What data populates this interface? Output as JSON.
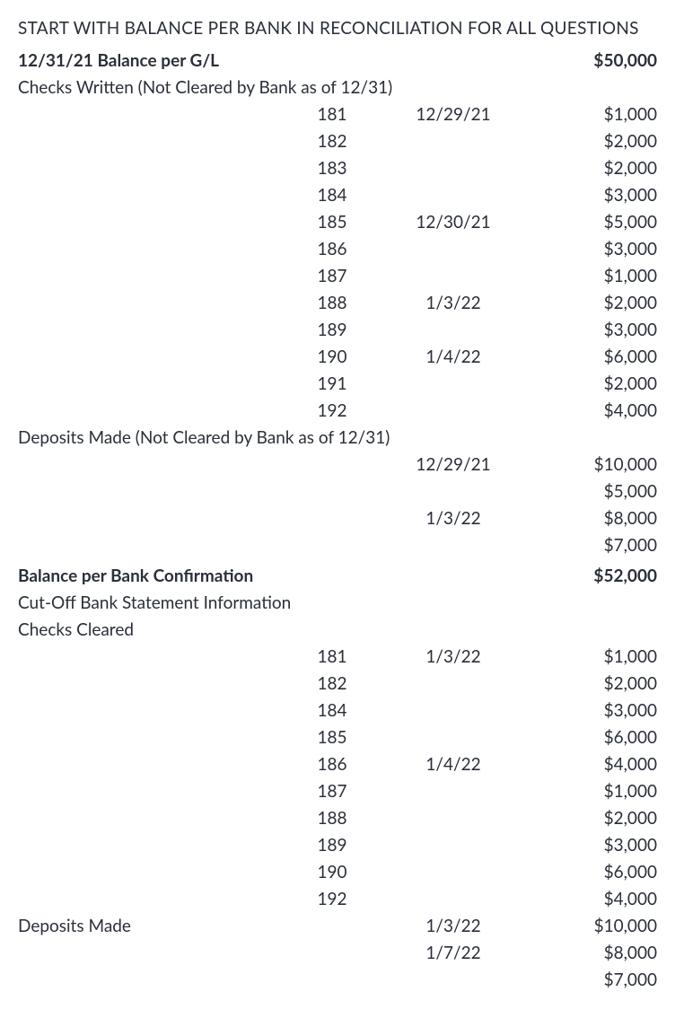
{
  "title": "START WITH BALANCE PER BANK IN RECONCILIATION FOR ALL QUESTIONS",
  "balance_gl": {
    "label": "12/31/21 Balance per G/L",
    "amount": "$50,000"
  },
  "checks_written_header": "Checks Written (Not Cleared by Bank as of 12/31)",
  "checks_written": [
    {
      "num": "181",
      "date": "12/29/21",
      "amount": "$1,000"
    },
    {
      "num": "182",
      "date": "",
      "amount": "$2,000"
    },
    {
      "num": "183",
      "date": "",
      "amount": "$2,000"
    },
    {
      "num": "184",
      "date": "",
      "amount": "$3,000"
    },
    {
      "num": "185",
      "date": "12/30/21",
      "amount": "$5,000"
    },
    {
      "num": "186",
      "date": "",
      "amount": "$3,000"
    },
    {
      "num": "187",
      "date": "",
      "amount": "$1,000"
    },
    {
      "num": "188",
      "date": "1/3/22",
      "amount": "$2,000"
    },
    {
      "num": "189",
      "date": "",
      "amount": "$3,000"
    },
    {
      "num": "190",
      "date": "1/4/22",
      "amount": "$6,000"
    },
    {
      "num": "191",
      "date": "",
      "amount": "$2,000"
    },
    {
      "num": "192",
      "date": "",
      "amount": "$4,000"
    }
  ],
  "deposits_made_header": "Deposits Made  (Not Cleared by Bank as of 12/31)",
  "deposits_made": [
    {
      "date": "12/29/21",
      "amount": "$10,000"
    },
    {
      "date": "",
      "amount": "$5,000"
    },
    {
      "date": "1/3/22",
      "amount": "$8,000"
    },
    {
      "date": "",
      "amount": "$7,000"
    }
  ],
  "balance_bank": {
    "label": "Balance per Bank Confirmation",
    "amount": "$52,000"
  },
  "cutoff_header": "Cut-Off Bank Statement Information",
  "checks_cleared_header": "Checks Cleared",
  "checks_cleared": [
    {
      "num": "181",
      "date": "1/3/22",
      "amount": "$1,000"
    },
    {
      "num": "182",
      "date": "",
      "amount": "$2,000"
    },
    {
      "num": "184",
      "date": "",
      "amount": "$3,000"
    },
    {
      "num": "185",
      "date": "",
      "amount": "$6,000"
    },
    {
      "num": "186",
      "date": "1/4/22",
      "amount": "$4,000"
    },
    {
      "num": "187",
      "date": "",
      "amount": "$1,000"
    },
    {
      "num": "188",
      "date": "",
      "amount": "$2,000"
    },
    {
      "num": "189",
      "date": "",
      "amount": "$3,000"
    },
    {
      "num": "190",
      "date": "",
      "amount": "$6,000"
    },
    {
      "num": "192",
      "date": "",
      "amount": "$4,000"
    }
  ],
  "deposits_made2_header": "Deposits Made",
  "deposits_made2": [
    {
      "date": "1/3/22",
      "amount": "$10,000"
    },
    {
      "date": "1/7/22",
      "amount": "$8,000"
    },
    {
      "date": "",
      "amount": "$7,000"
    }
  ]
}
